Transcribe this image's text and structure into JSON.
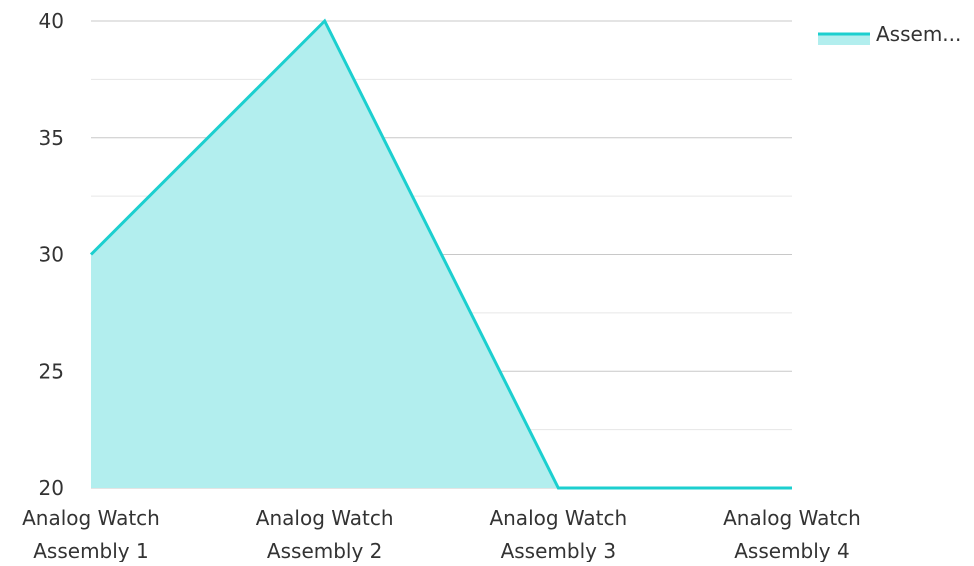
{
  "chart_data": {
    "type": "area",
    "title": "",
    "xlabel": "",
    "ylabel": "",
    "categories": [
      [
        "Analog Watch",
        "Assembly 1"
      ],
      [
        "Analog Watch",
        "Assembly 2"
      ],
      [
        "Analog Watch",
        "Assembly 3"
      ],
      [
        "Analog Watch",
        "Assembly 4"
      ]
    ],
    "series": [
      {
        "name": "Assem...",
        "values": [
          30,
          40,
          20,
          20
        ],
        "line_color": "#1ccfcf",
        "fill_color": "#b2eeee"
      }
    ],
    "ylim": [
      20,
      40
    ],
    "yticks": [
      20,
      25,
      30,
      35,
      40
    ],
    "grid": true,
    "legend_position": "top-right"
  },
  "colors": {
    "gridline": "#c8c8c8",
    "minor_gridline": "#e6e6e6",
    "axis_text": "#333333"
  }
}
